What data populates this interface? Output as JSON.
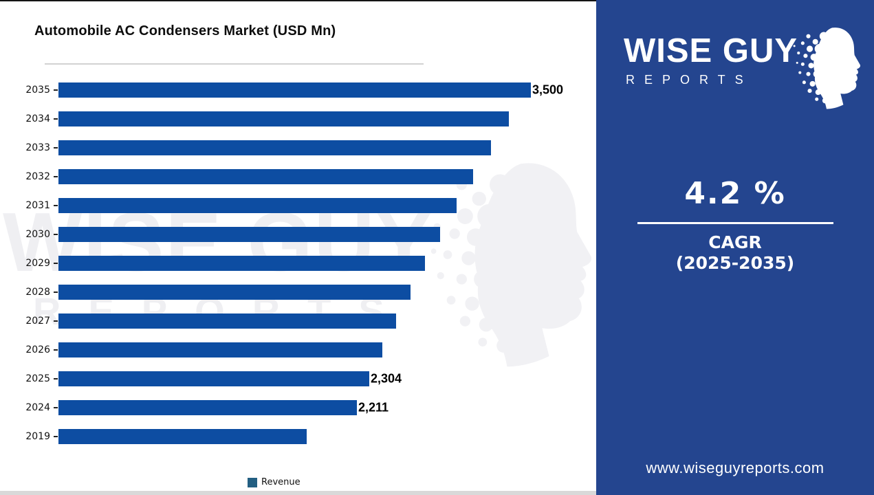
{
  "chart": {
    "title": "Automobile AC Condensers Market (USD Mn)",
    "legend_label": "Revenue",
    "axis_max": 3500,
    "colors": {
      "bar": "#0d4da2",
      "legend_swatch": "#235f82"
    },
    "points": [
      {
        "year": "2035",
        "value": 3500,
        "label": "3,500"
      },
      {
        "year": "2034",
        "value": 3336
      },
      {
        "year": "2033",
        "value": 3202
      },
      {
        "year": "2032",
        "value": 3073
      },
      {
        "year": "2031",
        "value": 2949
      },
      {
        "year": "2030",
        "value": 2830
      },
      {
        "year": "2029",
        "value": 2716
      },
      {
        "year": "2028",
        "value": 2607
      },
      {
        "year": "2027",
        "value": 2502
      },
      {
        "year": "2026",
        "value": 2401
      },
      {
        "year": "2025",
        "value": 2304,
        "label": "2,304"
      },
      {
        "year": "2024",
        "value": 2211,
        "label": "2,211"
      },
      {
        "year": "2019",
        "value": 1840
      }
    ]
  },
  "chart_data": {
    "type": "bar",
    "orientation": "horizontal",
    "title": "Automobile AC Condensers Market (USD Mn)",
    "categories": [
      "2035",
      "2034",
      "2033",
      "2032",
      "2031",
      "2030",
      "2029",
      "2028",
      "2027",
      "2026",
      "2025",
      "2024",
      "2019"
    ],
    "values": [
      3500,
      3336,
      3202,
      3073,
      2949,
      2830,
      2716,
      2607,
      2502,
      2401,
      2304,
      2211,
      1840
    ],
    "labeled_values": {
      "2035": "3,500",
      "2025": "2,304",
      "2024": "2,211"
    },
    "legend": [
      "Revenue"
    ],
    "legend_position": "bottom",
    "xlim": [
      0,
      3500
    ],
    "grid": false
  },
  "sidebar": {
    "bg_color": "#24458f",
    "logo_line1": "WISE GUY",
    "logo_line2": "REPORTS",
    "cagr_value": "4.2 %",
    "cagr_line1": "CAGR",
    "cagr_line2": "(2025-2035)",
    "website": "www.wiseguyreports.com"
  },
  "watermark": {
    "line1": "WISE GUY",
    "line2": "REPORTS"
  }
}
